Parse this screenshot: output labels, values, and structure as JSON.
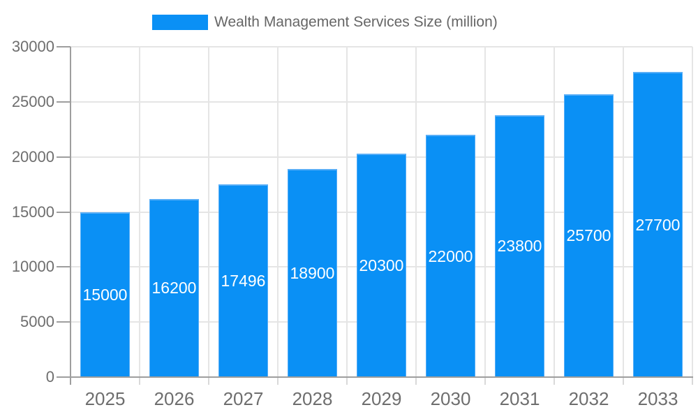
{
  "legend": {
    "label": "Wealth Management Services Size (million)"
  },
  "chart_data": {
    "type": "bar",
    "title": "",
    "categories": [
      "2025",
      "2026",
      "2027",
      "2028",
      "2029",
      "2030",
      "2031",
      "2032",
      "2033"
    ],
    "values": [
      15000,
      16200,
      17496,
      18900,
      20300,
      22000,
      23800,
      25700,
      27700
    ],
    "series_name": "Wealth Management Services Size (million)",
    "xlabel": "",
    "ylabel": "",
    "ylim": [
      0,
      30000
    ],
    "yticks": [
      0,
      5000,
      10000,
      15000,
      20000,
      25000,
      30000
    ],
    "grid": true,
    "legend_position": "top-center",
    "value_labels_position": "inside-center",
    "colors": {
      "bar_fill": "#0a90f5",
      "bar_border": "#58aef7",
      "value_label": "#ffffff",
      "grid_line": "#e5e5e5",
      "axis_line": "#9e9e9e",
      "x_tick": "#d9d9d9",
      "tick_label": "#6e6e6e",
      "legend_text": "#666666",
      "background": "#ffffff"
    }
  }
}
